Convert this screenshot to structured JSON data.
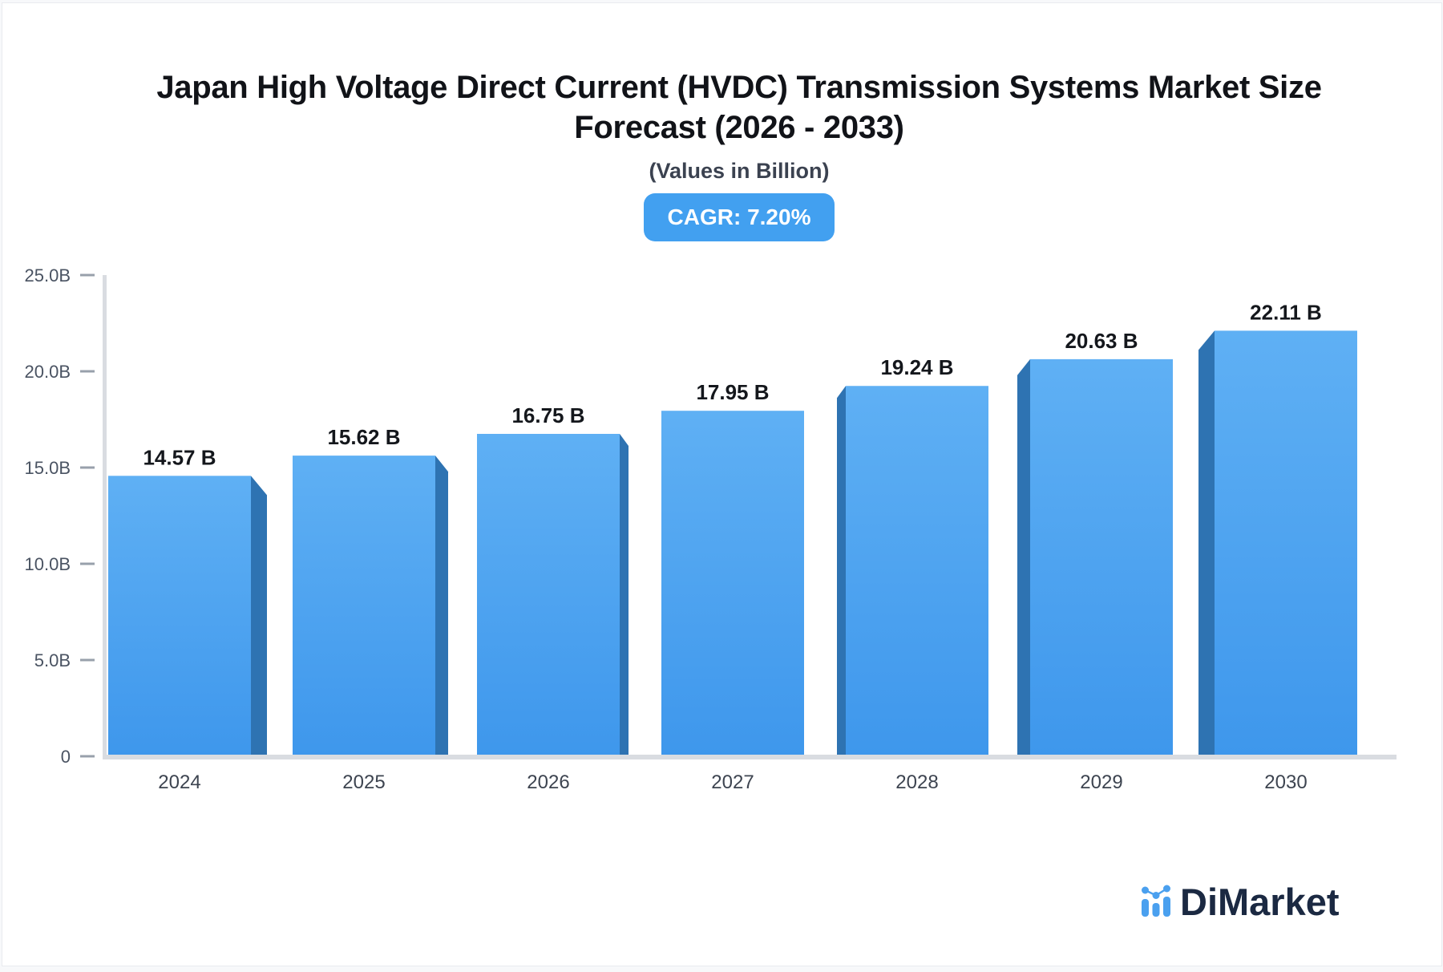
{
  "page": {
    "background": "#f7f8fa",
    "card_background": "#ffffff",
    "card_border": "#e9ebef"
  },
  "header": {
    "title_lines": [
      "Japan High Voltage Direct Current (HVDC) Transmission Systems Market Size",
      "Forecast (2026 - 2033)"
    ],
    "subtitle": "(Values in Billion)",
    "cagr_label": "CAGR: 7.20%"
  },
  "chart_data": {
    "type": "bar",
    "title": "Japan High Voltage Direct Current (HVDC) Transmission Systems Market Size Forecast (2026 - 2033)",
    "subtitle": "(Values in Billion)",
    "cagr": "7.20%",
    "categories": [
      "2024",
      "2025",
      "2026",
      "2027",
      "2028",
      "2029",
      "2030"
    ],
    "values": [
      14.57,
      15.62,
      16.75,
      17.95,
      19.24,
      20.63,
      22.11
    ],
    "value_labels": [
      "14.57 B",
      "15.62 B",
      "16.75 B",
      "17.95 B",
      "19.24 B",
      "20.63 B",
      "22.11 B"
    ],
    "unit": "Billion",
    "xlabel": "",
    "ylabel": "",
    "ylim": [
      0,
      25
    ],
    "ytick_values": [
      0,
      5,
      10,
      15,
      20,
      25
    ],
    "ytick_labels": [
      "0",
      "5.0B",
      "10.0B",
      "15.0B",
      "20.0B",
      "25.0B"
    ],
    "grid": false,
    "legend": false,
    "colors": {
      "bar_top": "#5FB0F4",
      "bar_bottom": "#3E97EC",
      "bar_side": "#2E73B2",
      "axis_line": "#d9dce1",
      "tick_dash": "#98a0ab",
      "ytick_text": "#4a5362",
      "xtick_text": "#3d4450",
      "value_text": "#14171c"
    }
  },
  "logo": {
    "text": "DiMarket",
    "icon": "mini-bar-chart-icon",
    "text_color": "#1B2942",
    "accent_color": "#4AA0EF"
  }
}
